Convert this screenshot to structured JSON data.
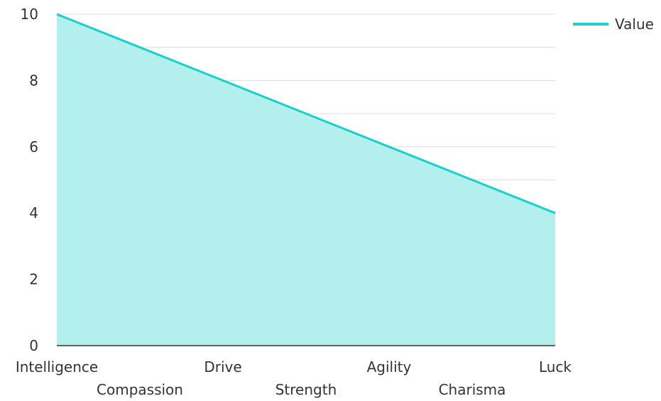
{
  "chart_data": {
    "type": "area",
    "categories": [
      "Intelligence",
      "Compassion",
      "Drive",
      "Strength",
      "Agility",
      "Charisma",
      "Luck"
    ],
    "series": [
      {
        "name": "Value",
        "values": [
          10,
          9,
          8,
          7,
          6,
          5,
          4
        ]
      }
    ],
    "y_ticks": [
      "0",
      "2",
      "4",
      "6",
      "8",
      "10"
    ],
    "ylim": [
      0,
      10
    ],
    "grid": true,
    "legend": "top-right",
    "colors": {
      "line": "#1ccfcf",
      "fill": "#b2efed",
      "grid": "#dddddd",
      "axis": "#333333"
    }
  }
}
